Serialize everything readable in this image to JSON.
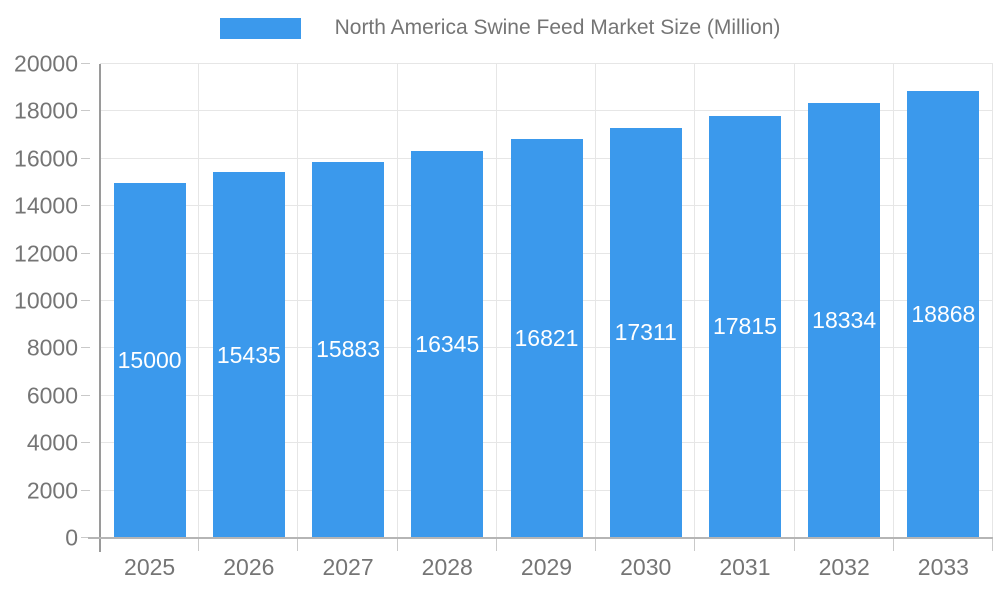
{
  "chart_data": {
    "type": "bar",
    "title": "North America Swine Feed Market Size (Million)",
    "categories": [
      "2025",
      "2026",
      "2027",
      "2028",
      "2029",
      "2030",
      "2031",
      "2032",
      "2033"
    ],
    "values": [
      15000,
      15435,
      15883,
      16345,
      16821,
      17311,
      17815,
      18334,
      18868
    ],
    "xlabel": "",
    "ylabel": "",
    "ylim": [
      0,
      20000
    ],
    "ytick_labels": [
      "0",
      "2000",
      "4000",
      "6000",
      "8000",
      "10000",
      "12000",
      "14000",
      "16000",
      "18000",
      "20000"
    ],
    "grid": true,
    "legend_position": "top-center",
    "value_labels_position": "center-of-bar",
    "colors": {
      "bar": "#3B99EC",
      "bar_value_label": "#FFFFFF",
      "axis_text": "#757575",
      "legend_text": "#757575",
      "gridline": "#E6E6E6",
      "y_axis_line": "#9A9A9A",
      "x_axis_line": "#B5B5B5",
      "tick": "#C9C9C9",
      "background": "#FFFFFF"
    }
  }
}
